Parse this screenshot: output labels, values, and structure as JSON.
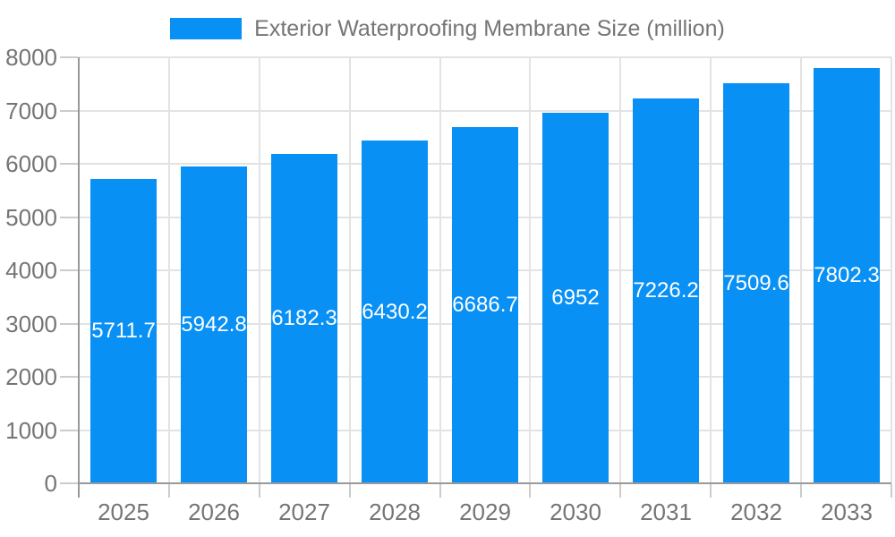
{
  "chart_data": {
    "type": "bar",
    "title": "Exterior Waterproofing Membrane Size (million)",
    "categories": [
      "2025",
      "2026",
      "2027",
      "2028",
      "2029",
      "2030",
      "2031",
      "2032",
      "2033"
    ],
    "values": [
      5711.7,
      5942.8,
      6182.3,
      6430.2,
      6686.7,
      6952,
      7226.2,
      7509.6,
      7802.3
    ],
    "value_labels": [
      "5711.7",
      "5942.8",
      "6182.3",
      "6430.2",
      "6686.7",
      "6952",
      "7226.2",
      "7509.6",
      "7802.3"
    ],
    "xlabel": "",
    "ylabel": "",
    "ylim": [
      0,
      8000
    ],
    "ytick_step": 1000,
    "ytick_labels": [
      "0",
      "1000",
      "2000",
      "3000",
      "4000",
      "5000",
      "6000",
      "7000",
      "8000"
    ],
    "grid": true,
    "legend_position": "top-center",
    "colors": {
      "bar": "#0990f4",
      "bar_label_text": "#ffffff",
      "axis_text": "#757575",
      "grid_line": "#e3e3e3",
      "axis_line": "#999999",
      "tick_mark": "#cccccc"
    }
  }
}
